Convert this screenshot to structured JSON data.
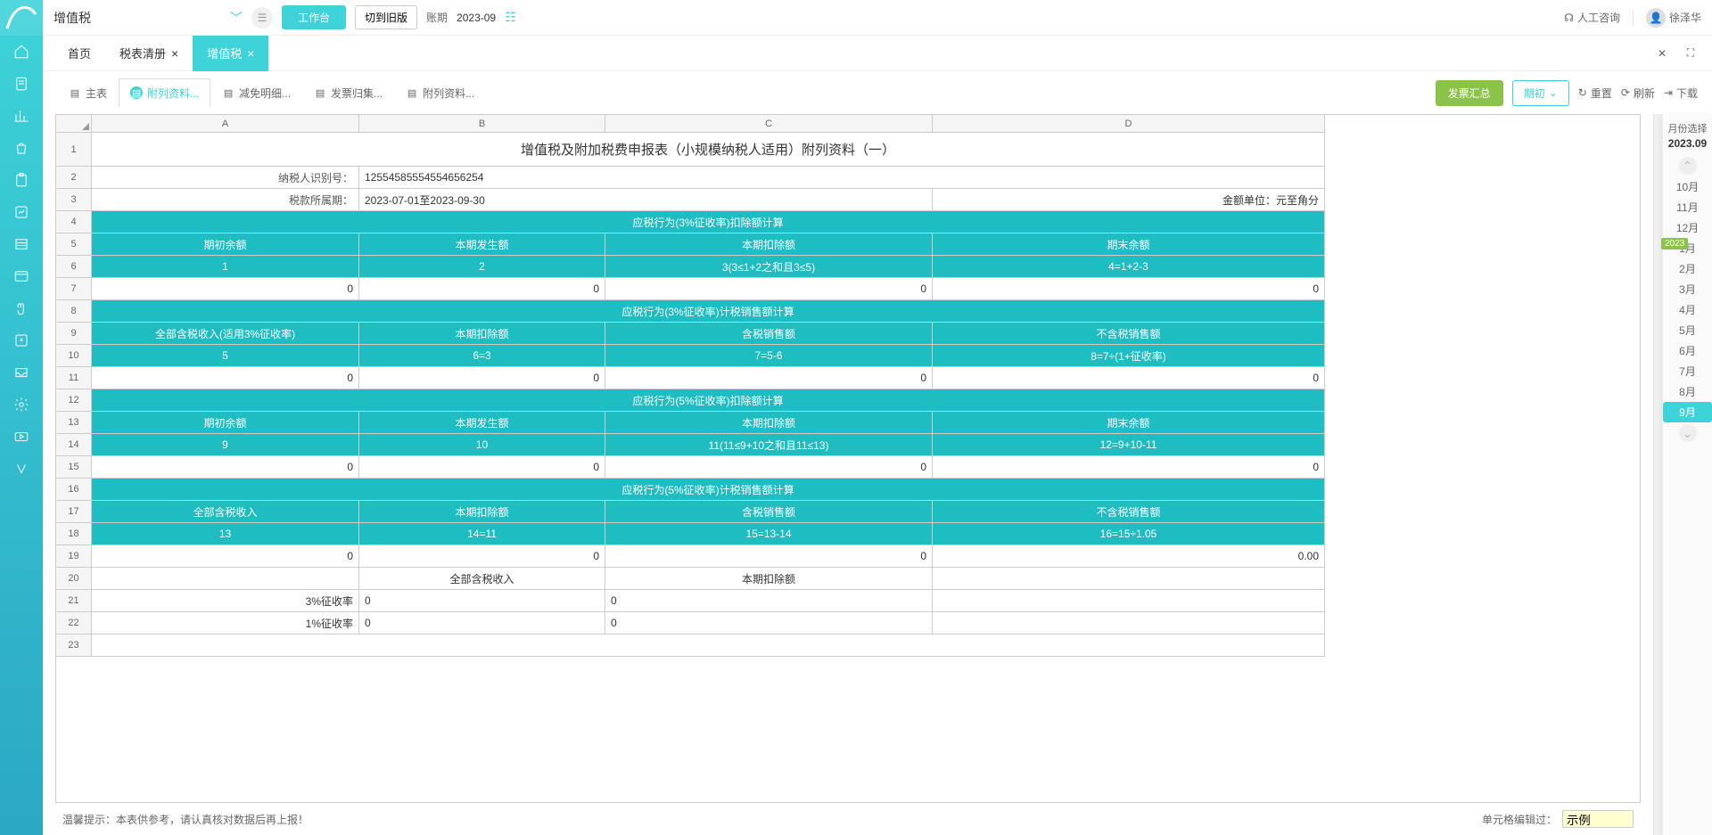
{
  "header": {
    "title": "增值税",
    "workbench_btn": "工作台",
    "switch_btn": "切到旧版",
    "period_label": "账期",
    "period_value": "2023-09",
    "consult": "人工咨询",
    "username": "徐泽华"
  },
  "main_tabs": [
    {
      "label": "首页",
      "closable": false,
      "active": false
    },
    {
      "label": "税表清册",
      "closable": true,
      "active": false
    },
    {
      "label": "增值税",
      "closable": true,
      "active": true
    }
  ],
  "sub_tabs": [
    {
      "label": "主表",
      "active": false
    },
    {
      "label": "附列资料...",
      "active": true
    },
    {
      "label": "减免明细...",
      "active": false
    },
    {
      "label": "发票归集...",
      "active": false
    },
    {
      "label": "附列资料...",
      "active": false
    }
  ],
  "toolbar": {
    "invoice_summary": "发票汇总",
    "period_init": "期初",
    "reset": "重置",
    "refresh": "刷新",
    "download": "下载"
  },
  "sheet": {
    "columns": [
      "A",
      "B",
      "C",
      "D"
    ],
    "title": "增值税及附加税费申报表（小规模纳税人适用）附列资料（一）",
    "taxpayer_id_label": "纳税人识别号：",
    "taxpayer_id": "12554585554554656254",
    "tax_period_label": "税款所属期：",
    "tax_period": "2023-07-01至2023-09-30",
    "unit_label": "金额单位：元至角分",
    "sections": {
      "s1_title": "应税行为(3%征收率)扣除额计算",
      "s1_h": [
        "期初余额",
        "本期发生额",
        "本期扣除额",
        "期末余额"
      ],
      "s1_f": [
        "1",
        "2",
        "3(3≤1+2之和且3≤5)",
        "4=1+2-3"
      ],
      "s1_v": [
        "0",
        "0",
        "0",
        "0"
      ],
      "s2_title": "应税行为(3%征收率)计税销售额计算",
      "s2_h": [
        "全部含税收入(适用3%征收率)",
        "本期扣除额",
        "含税销售额",
        "不含税销售额"
      ],
      "s2_f": [
        "5",
        "6=3",
        "7=5-6",
        "8=7÷(1+征收率)"
      ],
      "s2_v": [
        "0",
        "0",
        "0",
        "0"
      ],
      "s3_title": "应税行为(5%征收率)扣除额计算",
      "s3_h": [
        "期初余额",
        "本期发生额",
        "本期扣除额",
        "期末余额"
      ],
      "s3_f": [
        "9",
        "10",
        "11(11≤9+10之和且11≤13)",
        "12=9+10-11"
      ],
      "s3_v": [
        "0",
        "0",
        "0",
        "0"
      ],
      "s4_title": "应税行为(5%征收率)计税销售额计算",
      "s4_h": [
        "全部含税收入",
        "本期扣除额",
        "含税销售额",
        "不含税销售额"
      ],
      "s4_f": [
        "13",
        "14=11",
        "15=13-14",
        "16=15÷1.05"
      ],
      "s4_v": [
        "0",
        "0",
        "0",
        "0.00"
      ],
      "extra_h": [
        "全部含税收入",
        "本期扣除额"
      ],
      "extra_r1_label": "3%征收率",
      "extra_r1_v": [
        "0",
        "0"
      ],
      "extra_r2_label": "1%征收率",
      "extra_r2_v": [
        "0",
        "0"
      ]
    },
    "footer_tip": "温馨提示：本表供参考，请认真核对数据后再上报！",
    "footer_cell_label": "单元格编辑过：",
    "footer_cell_example": "示例"
  },
  "month_panel": {
    "title": "月份选择",
    "current": "2023.09",
    "year_badge": "2023",
    "months": [
      "10月",
      "11月",
      "12月",
      "1月",
      "2月",
      "3月",
      "4月",
      "5月",
      "6月",
      "7月",
      "8月",
      "9月"
    ],
    "active_index": 11
  }
}
